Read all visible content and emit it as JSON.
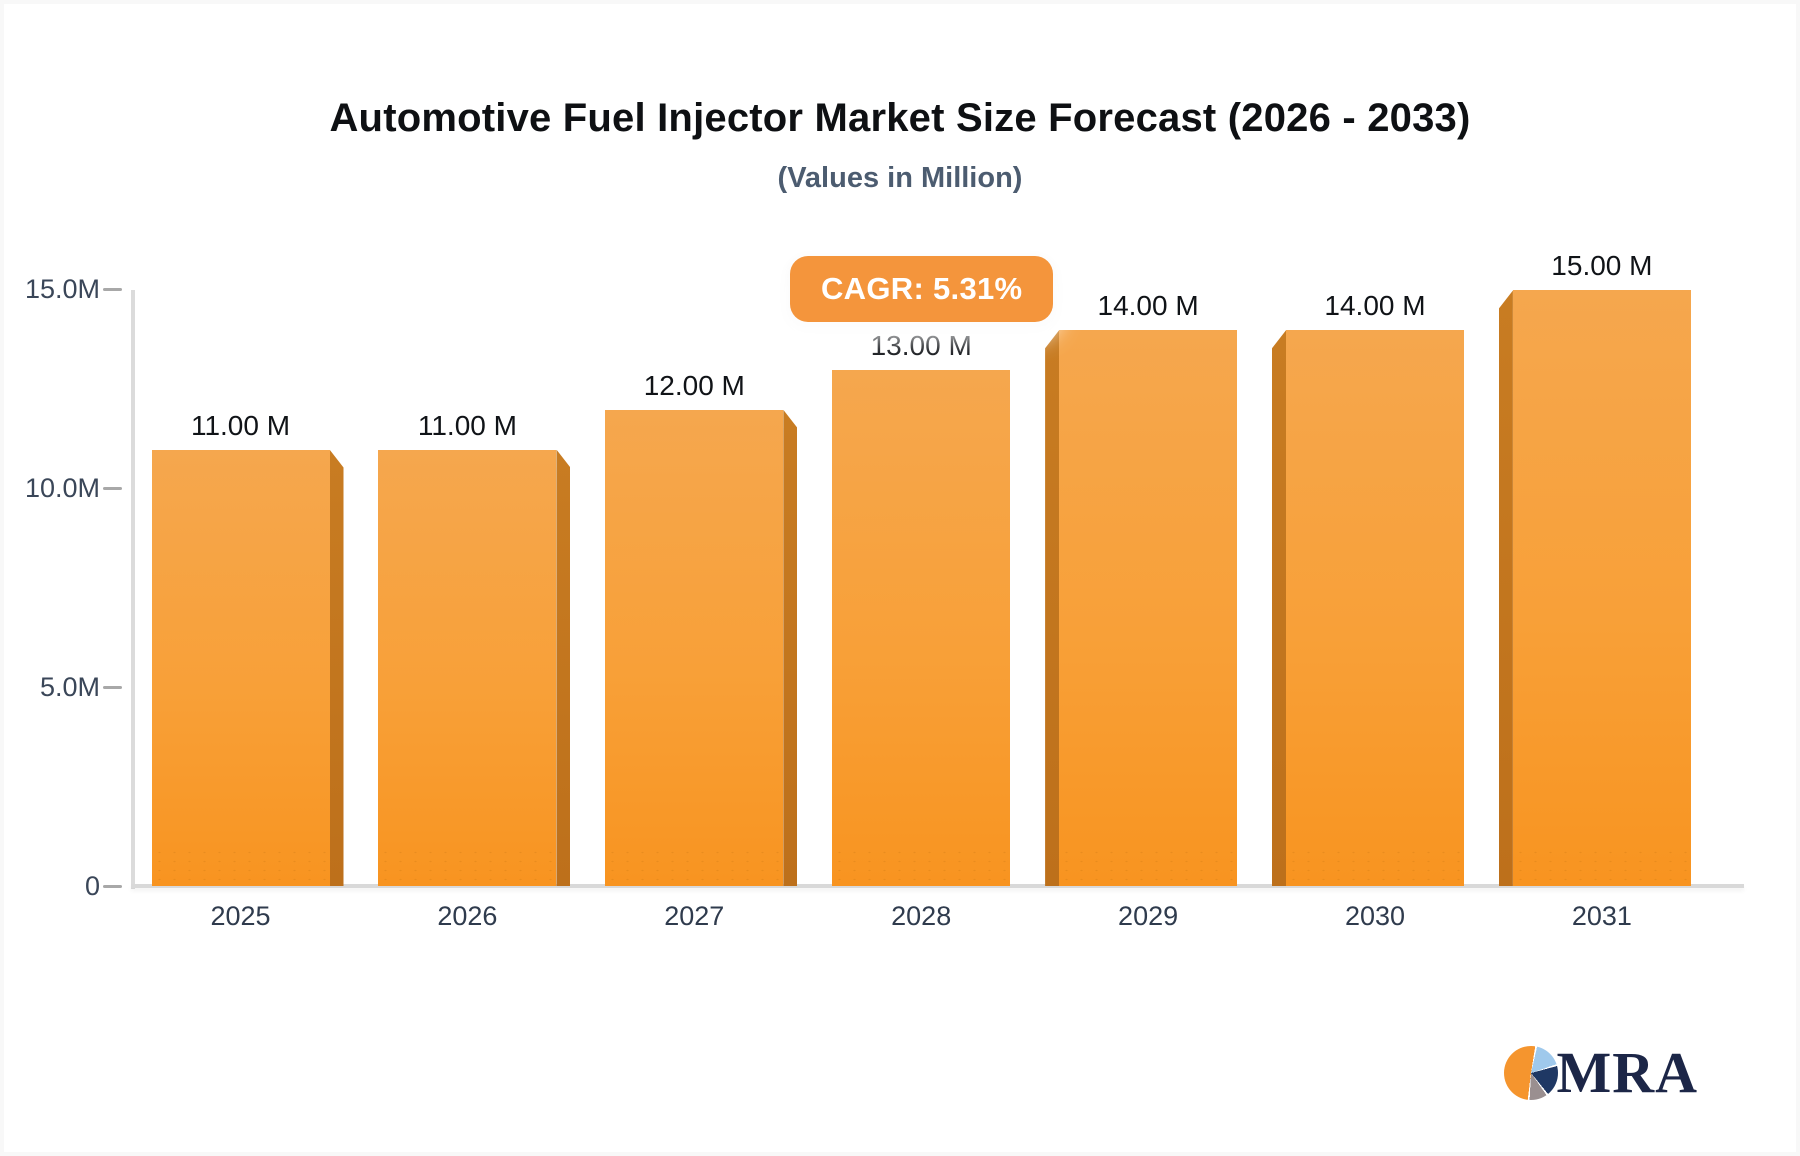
{
  "header": {
    "title": "Automotive Fuel Injector Market Size Forecast (2026 - 2033)",
    "subtitle": "(Values in Million)"
  },
  "badge": {
    "label": "CAGR: 5.31%",
    "color": "#f4953c"
  },
  "logo": {
    "text": "MRA"
  },
  "colors": {
    "bar_face_top": "#f5a74e",
    "bar_face_bottom": "#f89420",
    "bar_side": "#bd701b",
    "axis": "#dbdbdb",
    "tick_text": "#3a4658"
  },
  "chart_data": {
    "type": "bar",
    "title": "Automotive Fuel Injector Market Size Forecast (2026 - 2033)",
    "subtitle": "(Values in Million)",
    "unit": "Million",
    "categories": [
      "2025",
      "2026",
      "2027",
      "2028",
      "2029",
      "2030",
      "2031"
    ],
    "values": [
      11,
      11,
      12,
      13,
      14,
      14,
      15
    ],
    "value_labels": [
      "11.00 M",
      "11.00 M",
      "12.00 M",
      "13.00 M",
      "14.00 M",
      "14.00 M",
      "15.00 M"
    ],
    "annotation": "CAGR: 5.31%",
    "ylim": [
      0,
      15
    ],
    "yticks": [
      {
        "value": 0,
        "label": "0"
      },
      {
        "value": 5,
        "label": "5.0M"
      },
      {
        "value": 10,
        "label": "10.0M"
      },
      {
        "value": 15,
        "label": "15.0M"
      }
    ],
    "grid": false,
    "legend": false,
    "style": "3d-columns-orange"
  }
}
